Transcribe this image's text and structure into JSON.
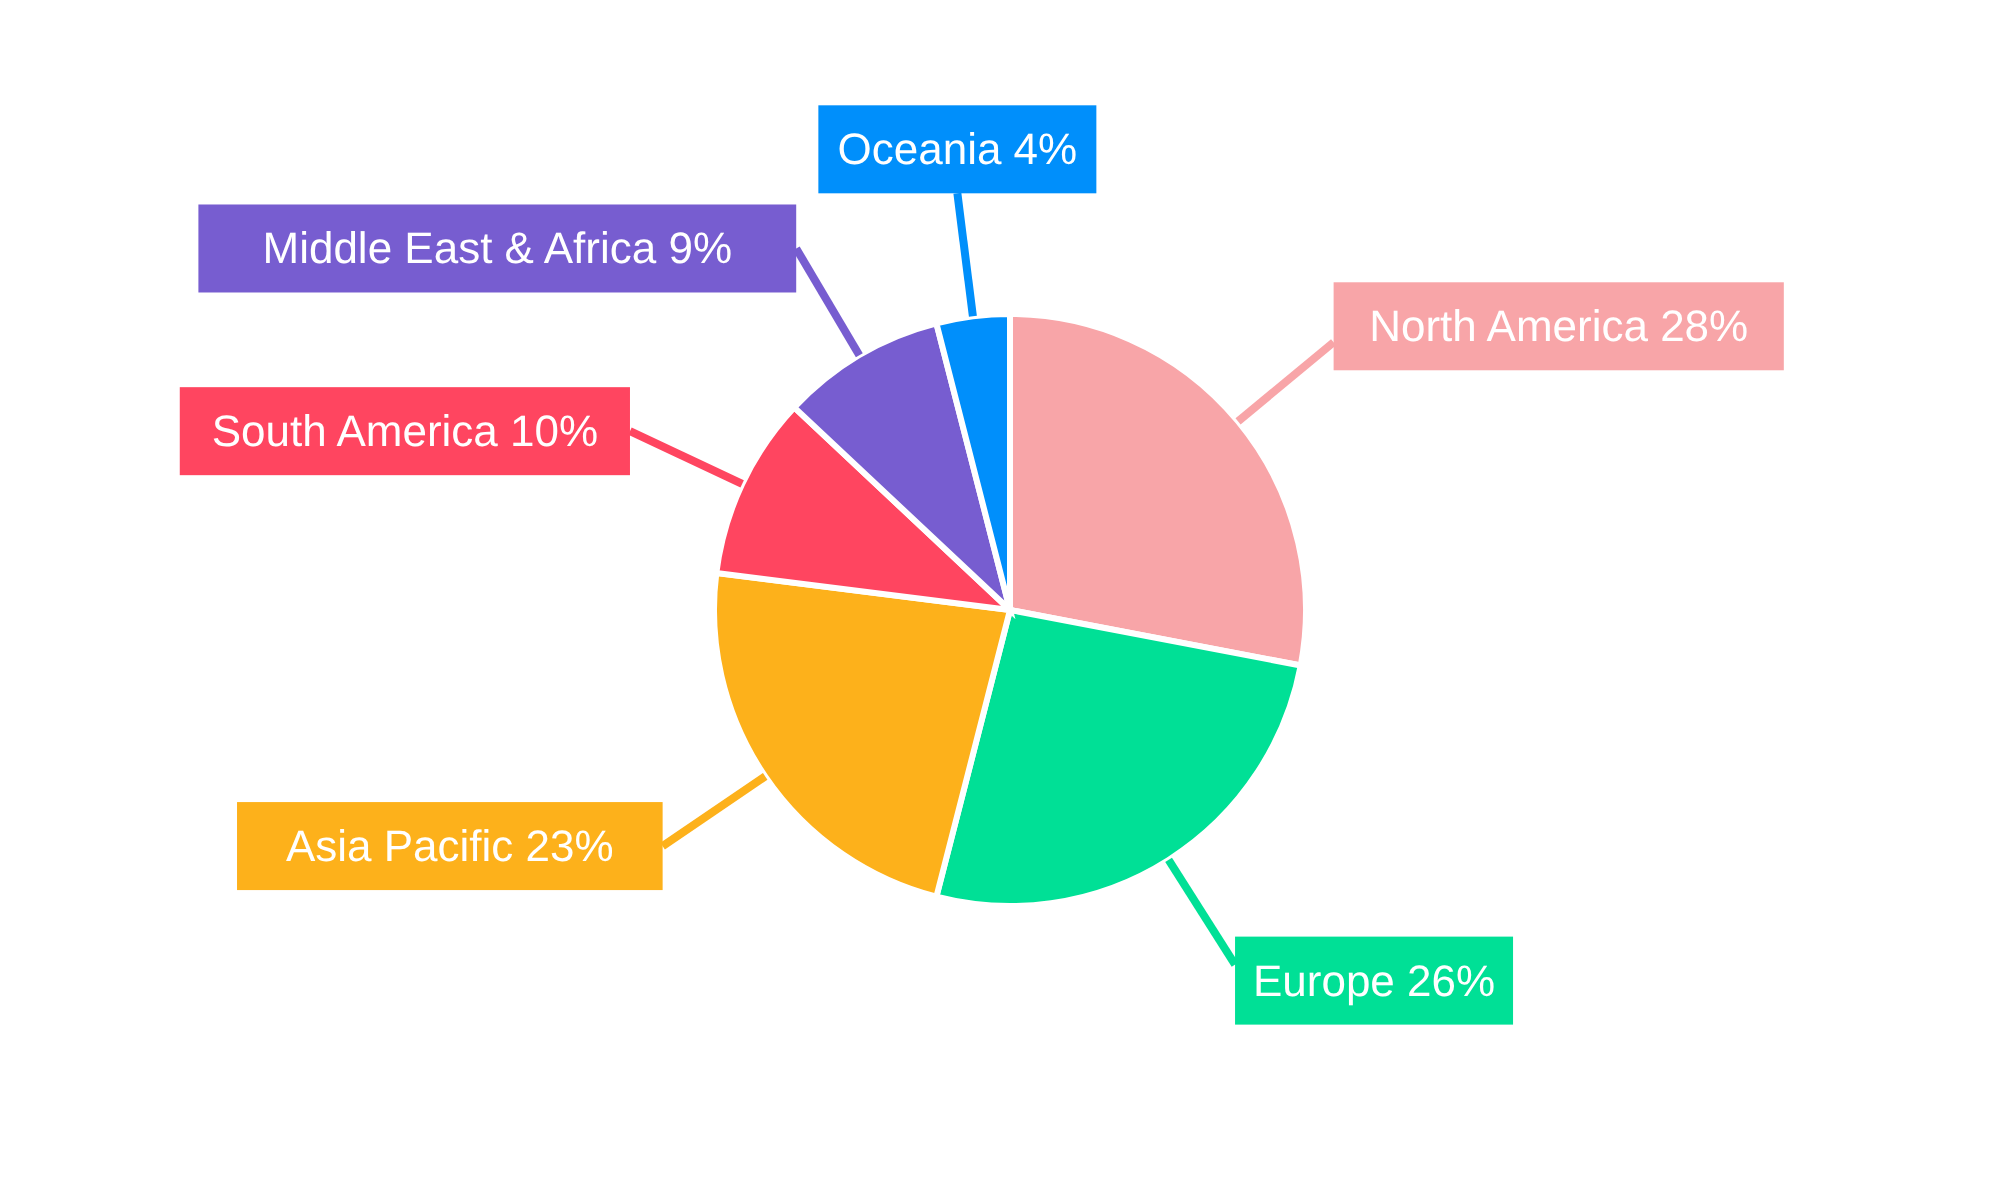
{
  "chart_data": {
    "type": "pie",
    "categories": [
      "North America",
      "Europe",
      "Asia Pacific",
      "South America",
      "Middle East & Africa",
      "Oceania"
    ],
    "values": [
      28,
      26,
      23,
      10,
      9,
      4
    ],
    "value_labels": [
      "28%",
      "26%",
      "23%",
      "10%",
      "9%",
      "4%"
    ],
    "colors": [
      "#f8a5a8",
      "#00e096",
      "#fdb11b",
      "#ff4560",
      "#775dd0",
      "#008ffb"
    ],
    "legend": false
  }
}
